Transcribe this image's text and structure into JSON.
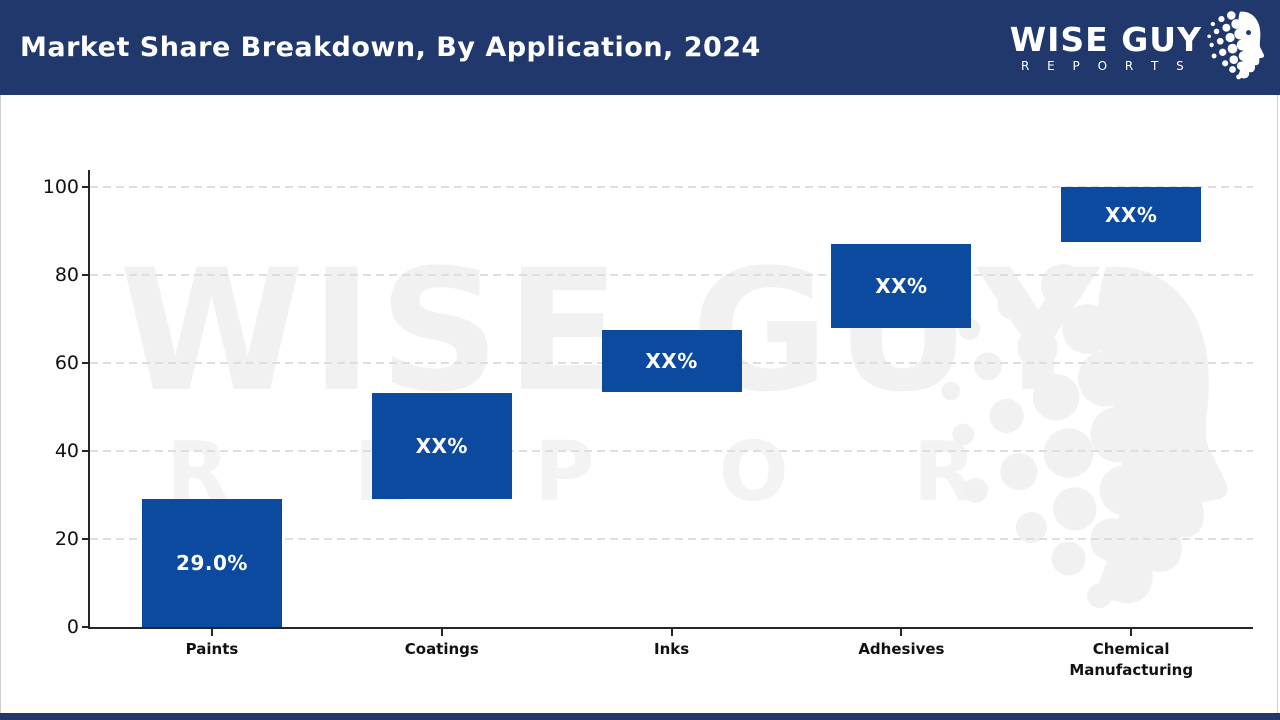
{
  "header": {
    "title": "Market Share Breakdown, By Application, 2024",
    "bg_color": "#20386b",
    "logo": {
      "line1": "WISE GUY",
      "line2": "R E P O R T S",
      "face_icon": "dotted-head-profile"
    }
  },
  "watermark": {
    "line1": "WISE GUY",
    "line2": "R E P O R T S",
    "face_icon": "dotted-head-profile",
    "color": "#f1f1f1"
  },
  "chart_data": {
    "type": "bar",
    "subtype": "waterfall",
    "title": "Market Share Breakdown, By Application, 2024",
    "xlabel": "",
    "ylabel": "",
    "categories": [
      "Paints",
      "Coatings",
      "Inks",
      "Adhesives",
      "Chemical Manufacturing"
    ],
    "segments": [
      {
        "category": "Paints",
        "start": 0,
        "end": 29.0,
        "label": "29.0%"
      },
      {
        "category": "Coatings",
        "start": 29.2,
        "end": 53.2,
        "label": "XX%"
      },
      {
        "category": "Inks",
        "start": 53.4,
        "end": 67.5,
        "label": "XX%"
      },
      {
        "category": "Adhesives",
        "start": 68.0,
        "end": 87.0,
        "label": "XX%"
      },
      {
        "category": "Chemical Manufacturing",
        "start": 87.5,
        "end": 100.0,
        "label": "XX%"
      }
    ],
    "yticks": [
      0,
      20,
      40,
      60,
      80,
      100
    ],
    "ylim": [
      0,
      104
    ],
    "grid": "horizontal-dashed",
    "legend": "none",
    "bar_color": "#0c4aa0",
    "bar_label_color": "#ffffff",
    "axis_color": "#262626",
    "gridline_color": "#dedede"
  }
}
